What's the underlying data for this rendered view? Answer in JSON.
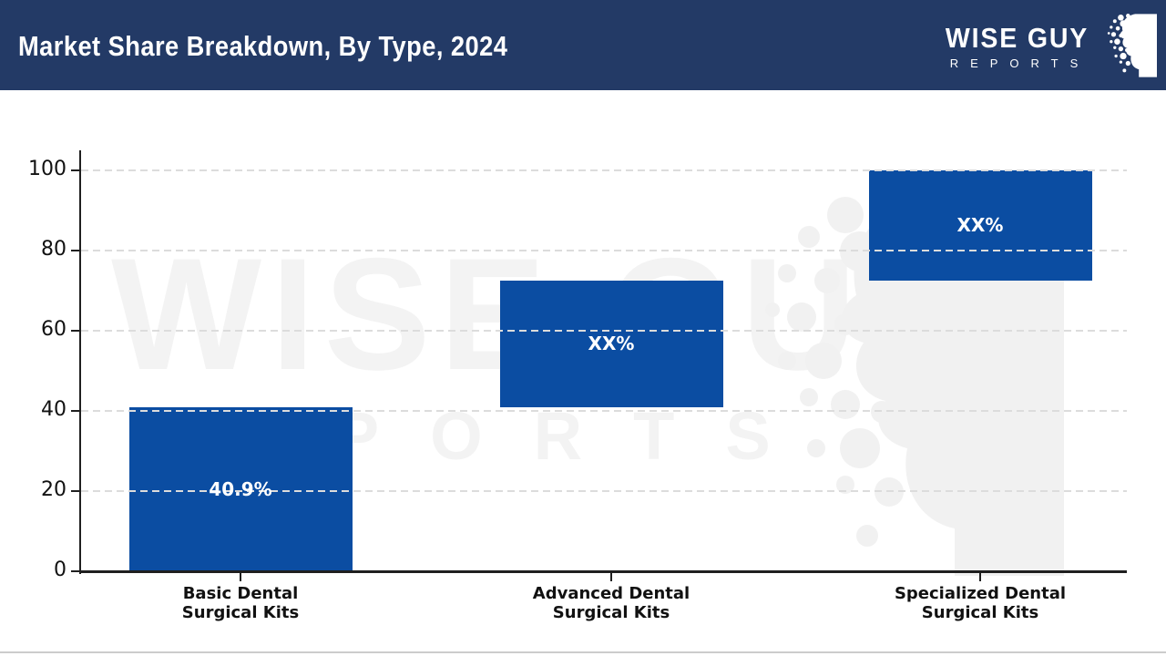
{
  "header": {
    "title": "Market Share Breakdown, By Type, 2024",
    "bg_color": "#233A66",
    "logo": {
      "name": "WISE GUY",
      "sub": "REPORTS"
    }
  },
  "watermark": {
    "name": "WISE GUY",
    "sub": "REPORTS"
  },
  "chart_data": {
    "type": "bar",
    "variant": "waterfall",
    "title": "Market Share Breakdown, By Type, 2024",
    "categories": [
      [
        "Basic Dental",
        "Surgical Kits"
      ],
      [
        "Advanced Dental",
        "Surgical Kits"
      ],
      [
        "Specialized Dental",
        "Surgical Kits"
      ]
    ],
    "series": [
      {
        "category": "Basic Dental Surgical Kits",
        "label": "40.9%",
        "start": 0,
        "end": 40.9,
        "value": 40.9,
        "masked": false
      },
      {
        "category": "Advanced Dental Surgical Kits",
        "label": "XX%",
        "start": 40.9,
        "end": 72.6,
        "value": 31.7,
        "masked": true
      },
      {
        "category": "Specialized Dental Surgical Kits",
        "label": "XX%",
        "start": 72.6,
        "end": 100,
        "value": 27.4,
        "masked": true
      }
    ],
    "yticks": [
      0,
      20,
      40,
      60,
      80,
      100
    ],
    "ylim": [
      0,
      105
    ],
    "xlabel": "",
    "ylabel": "",
    "legend": "none",
    "grid": {
      "horizontal": true,
      "style": "dashed",
      "color": "#dcdcdc"
    },
    "colors": {
      "bar": "#0B4DA2",
      "bar_label": "#FFFFFF",
      "axis": "#1f1f1f",
      "tick_label": "#111111",
      "header_bg": "#233A66",
      "header_text": "#FFFFFF",
      "watermark": "#F2F2F2",
      "footer_divider": "#CCCCCC"
    }
  }
}
